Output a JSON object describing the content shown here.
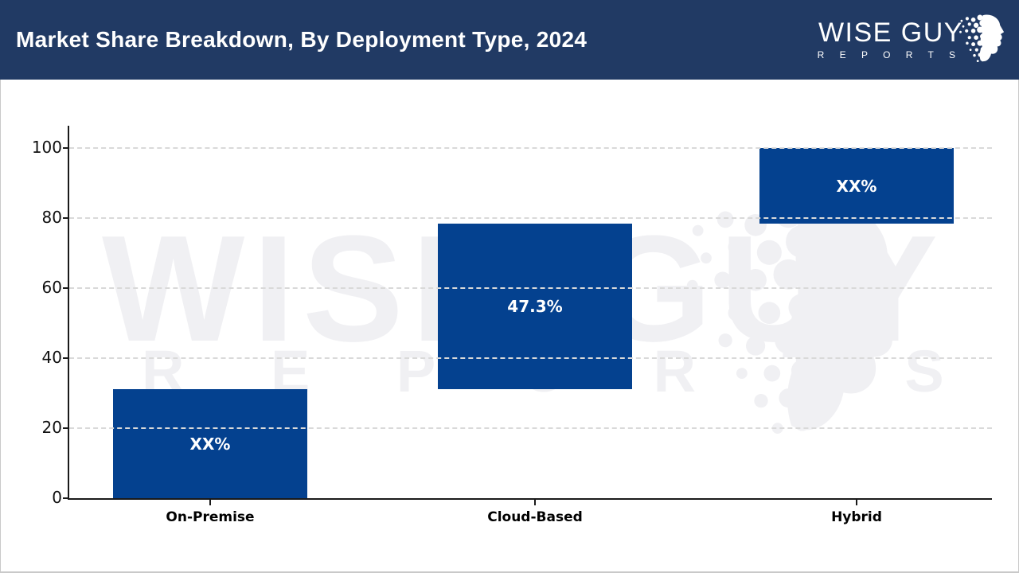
{
  "header": {
    "title": "Market Share Breakdown, By Deployment Type, 2024",
    "logo_line1": "WISE GUY",
    "logo_line2": "R E P O R T S"
  },
  "watermark": {
    "line1": "WISE GUY",
    "line2": "R E P O R T S"
  },
  "chart_data": {
    "type": "bar",
    "subtype": "floating-segment-breakdown",
    "title": "Market Share Breakdown, By Deployment Type, 2024",
    "categories": [
      "On-Premise",
      "Cloud-Based",
      "Hybrid"
    ],
    "segments": [
      {
        "category": "On-Premise",
        "start": 0,
        "end": 31.1,
        "label": "XX%"
      },
      {
        "category": "Cloud-Based",
        "start": 31.1,
        "end": 78.4,
        "label": "47.3%"
      },
      {
        "category": "Hybrid",
        "start": 78.4,
        "end": 100,
        "label": "XX%"
      }
    ],
    "xlabel": "",
    "ylabel": "",
    "ylim": [
      0,
      100
    ],
    "yticks": [
      0,
      20,
      40,
      60,
      80,
      100
    ],
    "grid": {
      "axis": "y",
      "style": "dashed",
      "above_bars": true
    },
    "legend": "none",
    "bar_color": "#04418f",
    "bar_label_color": "#ffffff"
  },
  "colors": {
    "header_bg": "#213a64",
    "bar": "#04418f",
    "grid": "#d9d9d9",
    "axis": "#1a1a1a",
    "watermark": "#f0f0f3",
    "border": "#c9c9c9",
    "tick_text": "#111111"
  }
}
